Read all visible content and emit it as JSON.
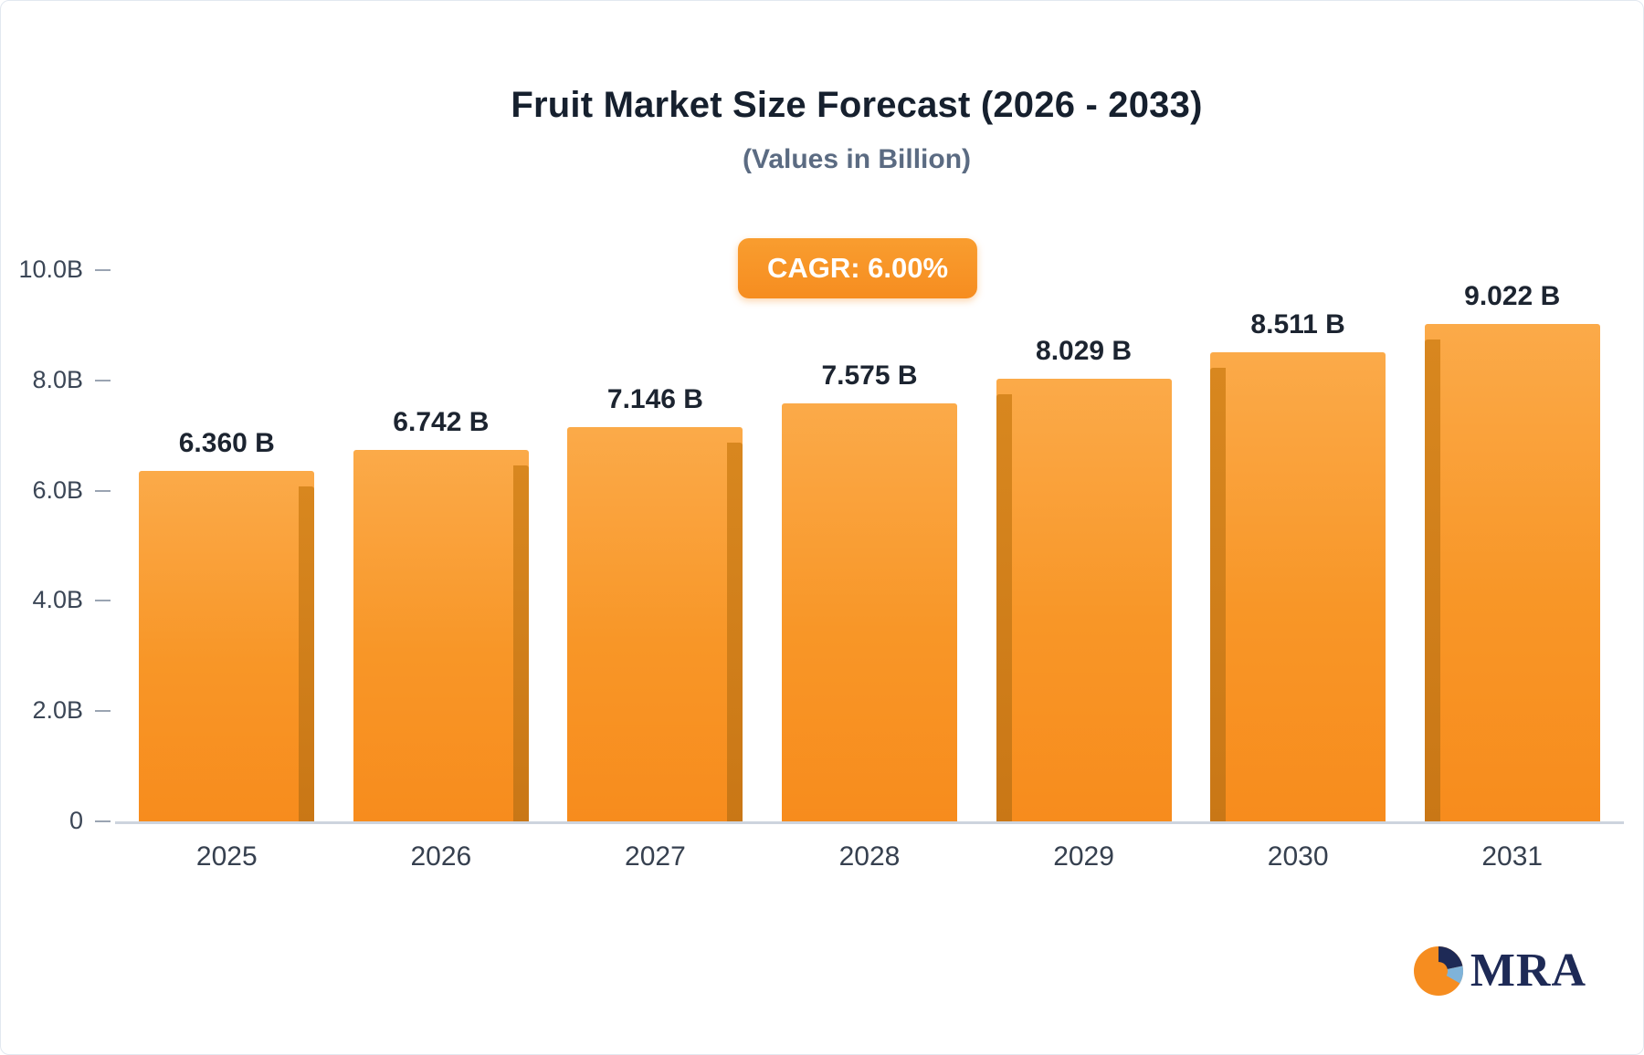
{
  "header": {
    "title": "Fruit Market Size Forecast (2026 - 2033)",
    "subtitle": "(Values in Billion)"
  },
  "badge": {
    "label": "CAGR: 6.00%"
  },
  "logo": {
    "text": "MRA"
  },
  "colors": {
    "bar_main": "#f89627",
    "bar_side": "#c97716",
    "badge": "#f68d20",
    "axis_text": "#3b4656",
    "title_text": "#16202e",
    "logo_navy": "#1e2a56",
    "logo_lightblue": "#7fb3d9"
  },
  "chart_data": {
    "type": "bar",
    "title": "Fruit Market Size Forecast (2026 - 2033)",
    "subtitle": "(Values in Billion)",
    "annotation": "CAGR: 6.00%",
    "categories": [
      "2025",
      "2026",
      "2027",
      "2028",
      "2029",
      "2030",
      "2031"
    ],
    "values": [
      6.36,
      6.742,
      7.146,
      7.575,
      8.029,
      8.511,
      9.022
    ],
    "value_labels": [
      "6.360 B",
      "6.742 B",
      "7.146 B",
      "7.575 B",
      "8.029 B",
      "8.511 B",
      "9.022 B"
    ],
    "xlabel": "",
    "ylabel": "",
    "ylim": [
      0,
      10
    ],
    "yticks": [
      {
        "label": "0",
        "value": 0
      },
      {
        "label": "2.0B",
        "value": 2
      },
      {
        "label": "4.0B",
        "value": 4
      },
      {
        "label": "6.0B",
        "value": 6
      },
      {
        "label": "8.0B",
        "value": 8
      },
      {
        "label": "10.0B",
        "value": 10
      }
    ],
    "grid": false,
    "legend": "none"
  }
}
